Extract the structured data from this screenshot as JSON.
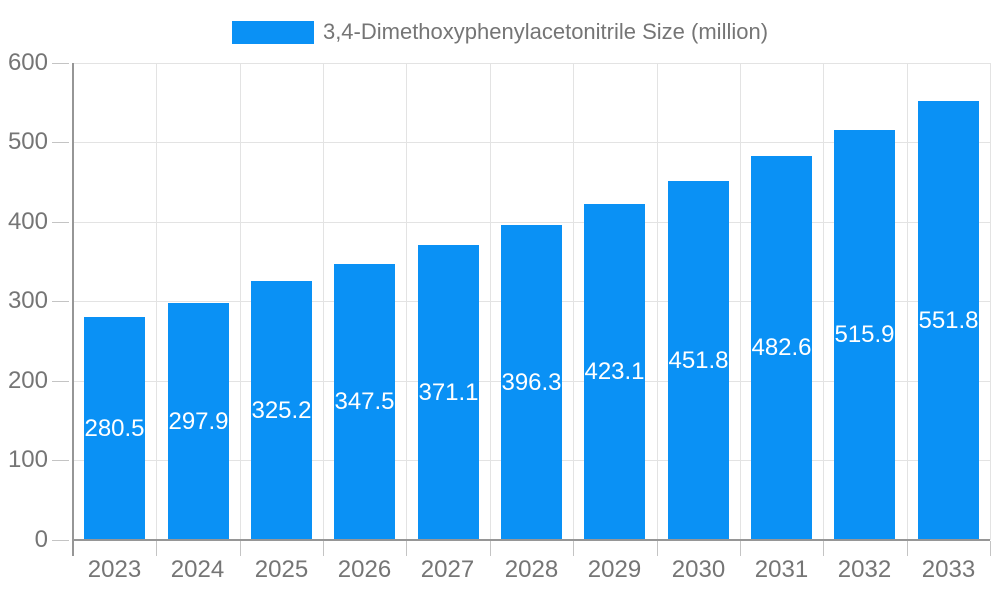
{
  "chart_data": {
    "type": "bar",
    "legend": "3,4-Dimethoxyphenylacetonitrile Size (million)",
    "legend_position": "top",
    "title": "",
    "xlabel": "",
    "ylabel": "",
    "categories": [
      "2023",
      "2024",
      "2025",
      "2026",
      "2027",
      "2028",
      "2029",
      "2030",
      "2031",
      "2032",
      "2033"
    ],
    "values": [
      280.5,
      297.9,
      325.2,
      347.5,
      371.1,
      396.3,
      423.1,
      451.8,
      482.6,
      515.9,
      551.8
    ],
    "value_label_decimals": 1,
    "ylim": [
      0,
      600
    ],
    "ytick_step": 100,
    "yticks": [
      "0",
      "100",
      "200",
      "300",
      "400",
      "500",
      "600"
    ],
    "grid": true,
    "colors": {
      "bar": "#0a91f5",
      "bar_label": "#ffffff",
      "axis_text": "#757575",
      "grid_line": "#e3e3e3",
      "axis_line": "#969696",
      "tick": "#c4c4c4"
    }
  }
}
